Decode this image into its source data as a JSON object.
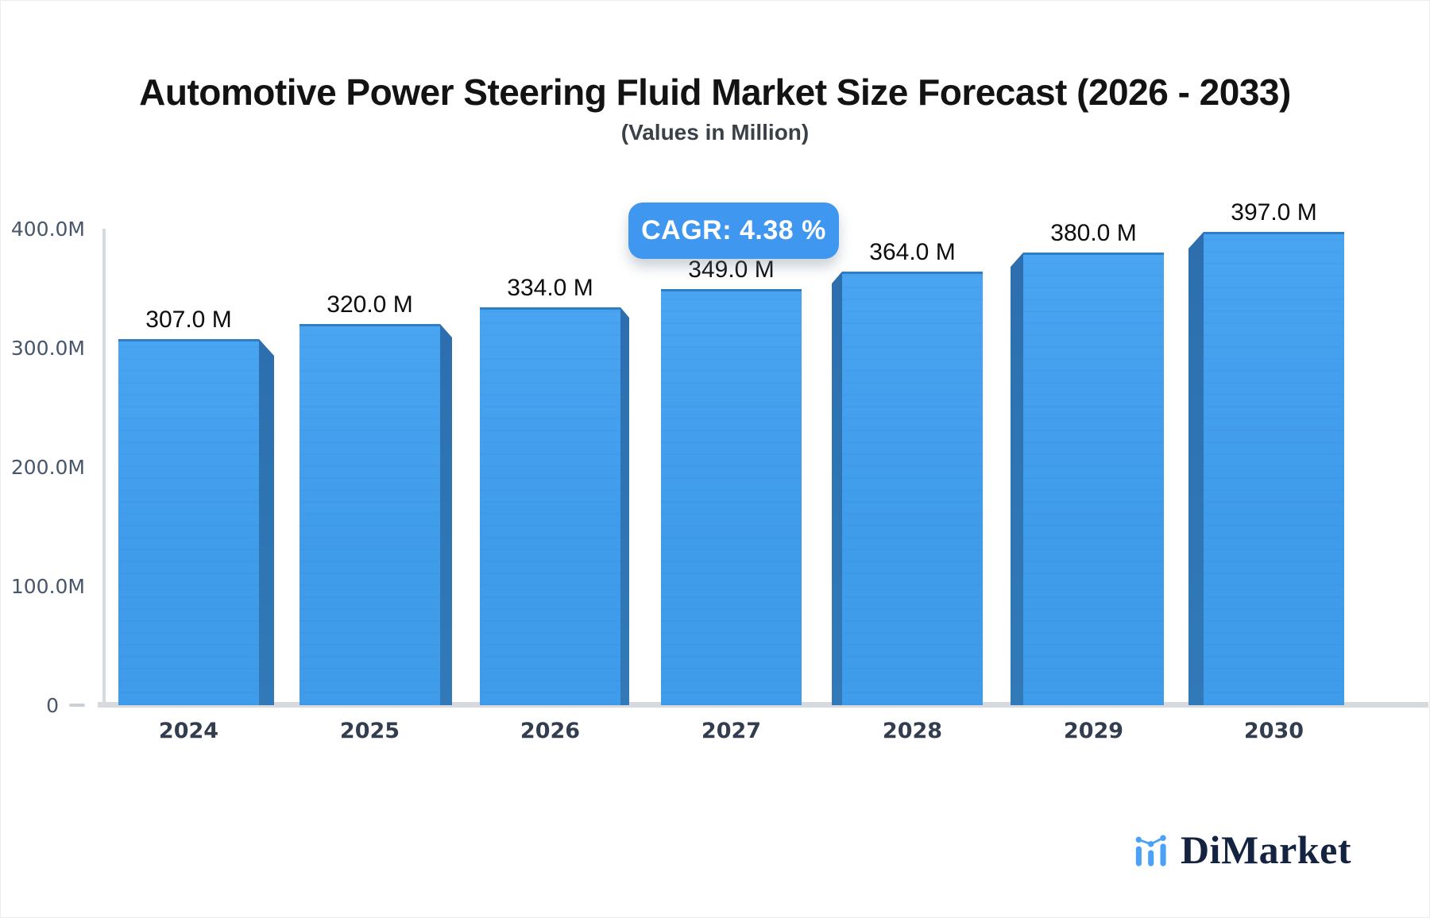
{
  "page": {
    "title": "Automotive Power Steering Fluid Market Size Forecast (2026 - 2033)",
    "subtitle": "(Values in Million)"
  },
  "badge": {
    "text": "CAGR: 4.38 %"
  },
  "chart_data": {
    "type": "bar",
    "style": "3d-column",
    "title": "Automotive Power Steering Fluid Market Size Forecast (2026 - 2033)",
    "subtitle": "(Values in Million)",
    "unit": "Million",
    "categories": [
      "2024",
      "2025",
      "2026",
      "2027",
      "2028",
      "2029",
      "2030"
    ],
    "values": [
      307.0,
      320.0,
      334.0,
      349.0,
      364.0,
      380.0,
      397.0
    ],
    "value_labels": [
      "307.0 M",
      "320.0 M",
      "334.0 M",
      "349.0 M",
      "364.0 M",
      "380.0 M",
      "397.0 M"
    ],
    "cagr": "4.38 %",
    "ylim": [
      0,
      400
    ],
    "y_ticks": [
      {
        "value": 400,
        "label": "400.0M"
      },
      {
        "value": 300,
        "label": "300.0M"
      },
      {
        "value": 200,
        "label": "200.0M"
      },
      {
        "value": 100,
        "label": "100.0M"
      },
      {
        "value": 0,
        "label": "0"
      }
    ],
    "grid": false,
    "legend": false
  },
  "colors": {
    "bar": "#3f9ceb",
    "bar_top": "#49a4f1",
    "bar_side": "#2e74b2",
    "badge_bg": "#4097ef",
    "badge_text": "#ffffff",
    "axis_line": "#d6d9de",
    "tick_text": "#47566a",
    "year_text": "#323d4f",
    "value_text": "#0d0d0d",
    "logo_blue": "#4aa1f6",
    "logo_navy": "#142440"
  },
  "footer": {
    "brand": "DiMarket",
    "logo_icon": "bar-chart-logo-icon"
  }
}
